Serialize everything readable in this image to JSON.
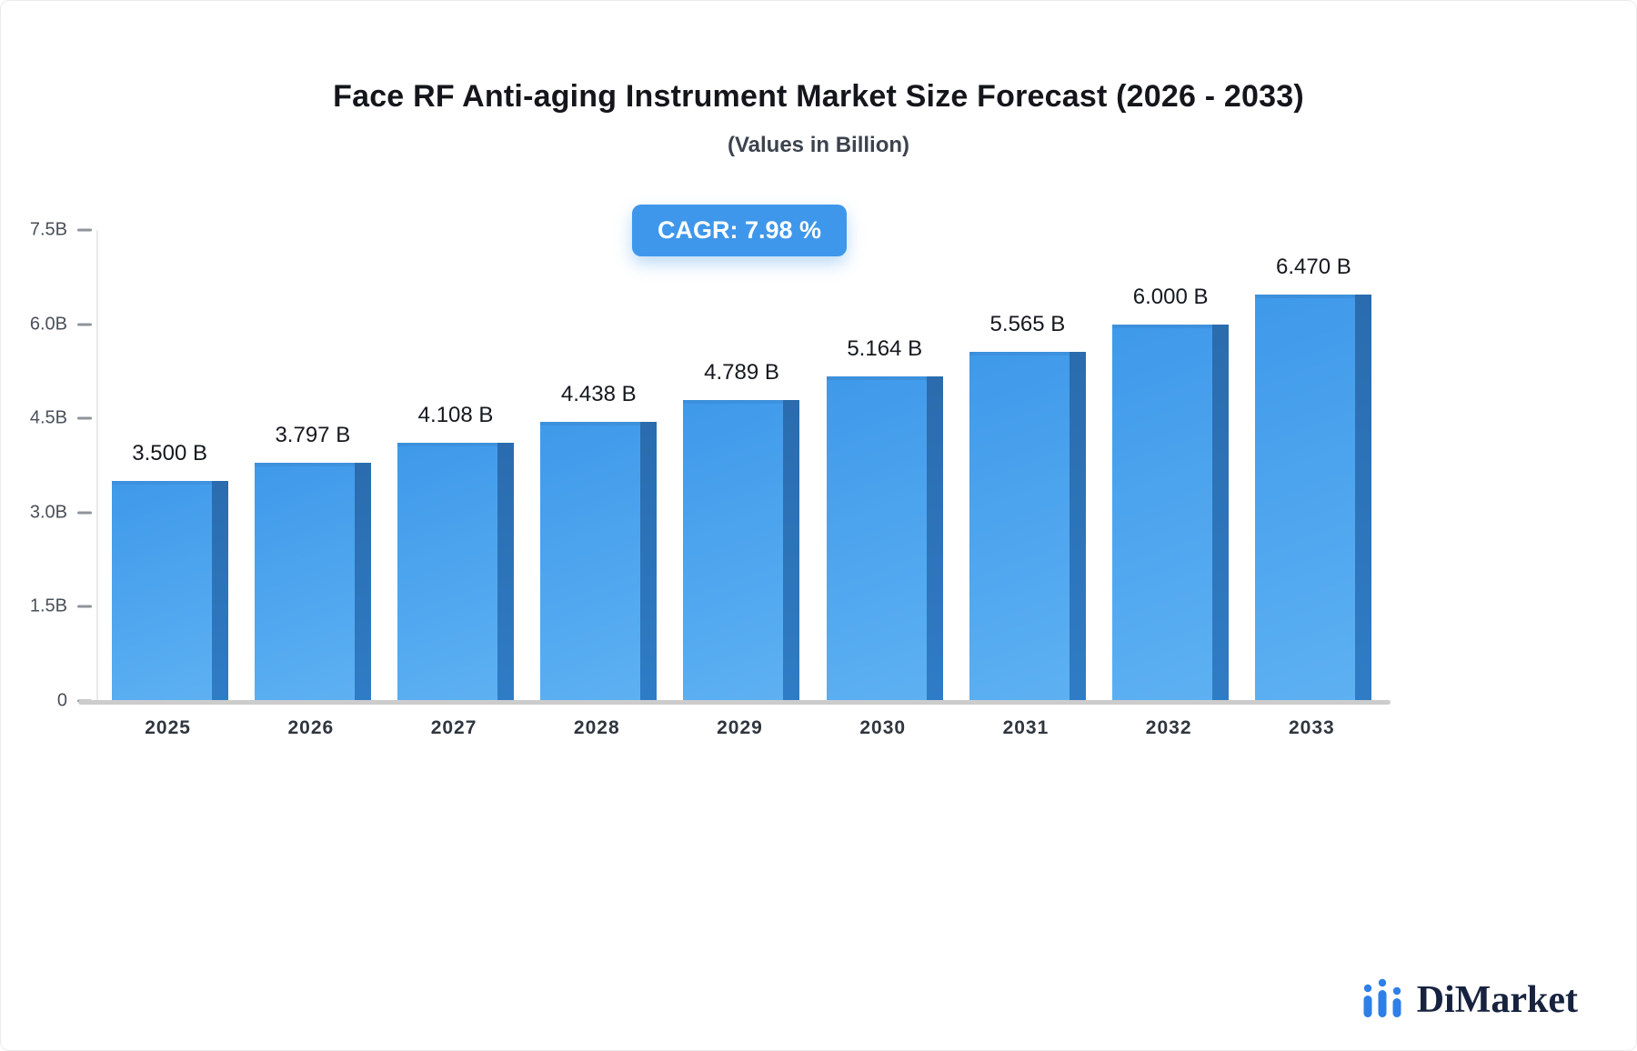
{
  "title": "Face RF Anti-aging Instrument Market Size Forecast (2026 - 2033)",
  "subtitle": "(Values in Billion)",
  "badge": {
    "label": "CAGR: 7.98 %"
  },
  "logo": {
    "text": "DiMarket",
    "icon": "dimarket-bars-icon",
    "icon_color": "#2e7fe8",
    "text_color": "#17233e"
  },
  "colors": {
    "bar_front": "#4aa2ec",
    "bar_side": "#2c74b8",
    "badge_bg": "#3e97ea",
    "axis_line": "#cccccc",
    "value_text": "#15181e"
  },
  "chart_data": {
    "type": "bar",
    "title": "Face RF Anti-aging Instrument Market Size Forecast (2026 - 2033)",
    "subtitle": "(Values in Billion)",
    "categories": [
      "2025",
      "2026",
      "2027",
      "2028",
      "2029",
      "2030",
      "2031",
      "2032",
      "2033"
    ],
    "values": [
      3.5,
      3.797,
      4.108,
      4.438,
      4.789,
      5.164,
      5.565,
      6.0,
      6.47
    ],
    "labels": [
      "3.500 B",
      "3.797 B",
      "4.108 B",
      "4.438 B",
      "4.789 B",
      "5.164 B",
      "5.565 B",
      "6.000 B",
      "6.470 B"
    ],
    "xlabel": "",
    "ylabel": "",
    "ylim": [
      0,
      7.5
    ],
    "yticks": [
      0,
      1.5,
      3.0,
      4.5,
      6.0,
      7.5
    ],
    "ytick_labels": [
      "0",
      "1.5B",
      "3.0B",
      "4.5B",
      "6.0B",
      "7.5B"
    ],
    "grid": false,
    "legend": false,
    "cagr": "7.98 %"
  }
}
